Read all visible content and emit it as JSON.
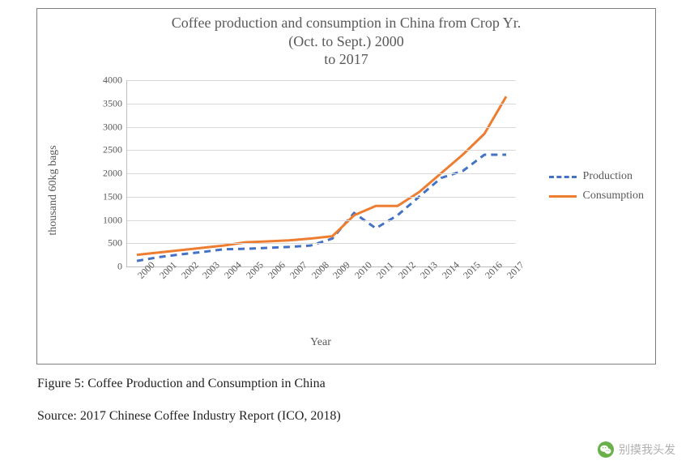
{
  "chart": {
    "type": "line",
    "title_lines": [
      "Coffee  production and consumption in China from Crop Yr.",
      "(Oct. to Sept.) 2000",
      "to 2017"
    ],
    "title_fontsize": 18,
    "title_color": "#595959",
    "frame_border_color": "#808080",
    "background_color": "#ffffff",
    "plot": {
      "x_categories": [
        "2000",
        "2001",
        "2002",
        "2003",
        "2004",
        "2005",
        "2006",
        "2007",
        "2008",
        "2009",
        "2010",
        "2011",
        "2012",
        "2013",
        "2014",
        "2015",
        "2016",
        "2017"
      ],
      "xlabel": "Year",
      "ylabel": "thousand 60kg bags",
      "label_fontsize": 14,
      "tick_fontsize": 12,
      "tick_color": "#595959",
      "axis_color": "#bfbfbf",
      "grid_color": "#d9d9d9",
      "ylim": [
        0,
        4000
      ],
      "ytick_step": 500,
      "xtick_rotation": -45
    },
    "series": [
      {
        "name": "Production",
        "color": "#4472c4",
        "dash": "8 6",
        "line_width": 3,
        "values": [
          120,
          200,
          260,
          310,
          370,
          380,
          400,
          420,
          450,
          600,
          1150,
          820,
          1100,
          1500,
          1900,
          2050,
          2400,
          2400
        ]
      },
      {
        "name": "Consumption",
        "color": "#ed7d31",
        "dash": "",
        "line_width": 3,
        "values": [
          250,
          300,
          350,
          400,
          450,
          520,
          540,
          560,
          600,
          650,
          1100,
          1300,
          1300,
          1600,
          2000,
          2400,
          2850,
          3650
        ]
      }
    ],
    "legend": {
      "items": [
        "Production",
        "Consumption"
      ],
      "fontsize": 14,
      "position": "right"
    }
  },
  "captions": {
    "figure": "Figure 5: Coffee Production and Consumption in China",
    "source": "Source: 2017 Chinese Coffee Industry Report (ICO, 2018)"
  },
  "watermark": {
    "text": "别摸我头发",
    "icon_bg": "#69b04a",
    "icon_fg": "#ffffff",
    "text_color": "#b0b0b0"
  }
}
